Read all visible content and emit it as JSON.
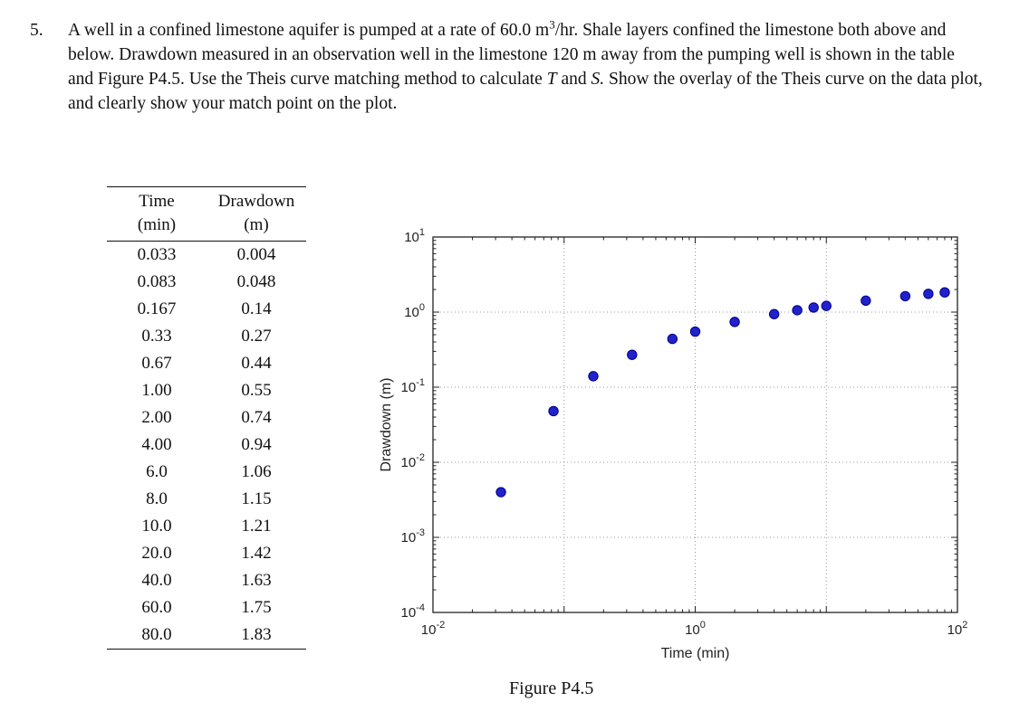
{
  "problem": {
    "number": "5.",
    "before_sup": "A well in a confined limestone aquifer is pumped at a rate of 60.0 m",
    "sup": "3",
    "after_sup": "/hr. Shale layers confined the limestone both above and below.  Drawdown measured in an observation well in the limestone 120 m away from the pumping well is shown in the table and Figure P4.5.  Use the Theis curve matching method to calculate ",
    "var_t": "T",
    "between_vars": " and ",
    "var_s": "S.",
    "after_vars": " Show the overlay of the Theis curve on the data plot, and clearly show your match point on the plot."
  },
  "table": {
    "headers": [
      {
        "name": "Time",
        "unit": "(min)"
      },
      {
        "name": "Drawdown",
        "unit": "(m)"
      }
    ],
    "rows": [
      [
        "0.033",
        "0.004"
      ],
      [
        "0.083",
        "0.048"
      ],
      [
        "0.167",
        "0.14"
      ],
      [
        "0.33",
        "0.27"
      ],
      [
        "0.67",
        "0.44"
      ],
      [
        "1.00",
        "0.55"
      ],
      [
        "2.00",
        "0.74"
      ],
      [
        "4.00",
        "0.94"
      ],
      [
        "6.0",
        "1.06"
      ],
      [
        "8.0",
        "1.15"
      ],
      [
        "10.0",
        "1.21"
      ],
      [
        "20.0",
        "1.42"
      ],
      [
        "40.0",
        "1.63"
      ],
      [
        "60.0",
        "1.75"
      ],
      [
        "80.0",
        "1.83"
      ]
    ]
  },
  "figure": {
    "caption": "Figure P4.5"
  },
  "chart_data": {
    "type": "scatter",
    "title": "",
    "x": [
      0.033,
      0.083,
      0.167,
      0.33,
      0.67,
      1.0,
      2.0,
      4.0,
      6.0,
      8.0,
      10.0,
      20.0,
      40.0,
      60.0,
      80.0
    ],
    "y": [
      0.004,
      0.048,
      0.14,
      0.27,
      0.44,
      0.55,
      0.74,
      0.94,
      1.06,
      1.15,
      1.21,
      1.42,
      1.63,
      1.75,
      1.83
    ],
    "xlabel": "Time (min)",
    "ylabel": "Drawdown (m)",
    "xscale": "log",
    "yscale": "log",
    "xlim": [
      0.01,
      100
    ],
    "ylim": [
      0.0001,
      10
    ],
    "xlim_exp": [
      -2,
      2
    ],
    "ylim_exp": [
      -4,
      1
    ],
    "x_labeled_exponents": [
      -2,
      0,
      2
    ],
    "y_labeled_exponents": [
      1,
      0,
      -1,
      -2,
      -3,
      -4
    ],
    "grid_x_exponents": [
      -1,
      0,
      1
    ],
    "grid_y_exponents": [
      0,
      -1,
      -2,
      -3
    ],
    "grid": true,
    "legend": false,
    "marker": "circle",
    "marker_color": "#2222cc",
    "marker_edge_color": "#00008b"
  }
}
